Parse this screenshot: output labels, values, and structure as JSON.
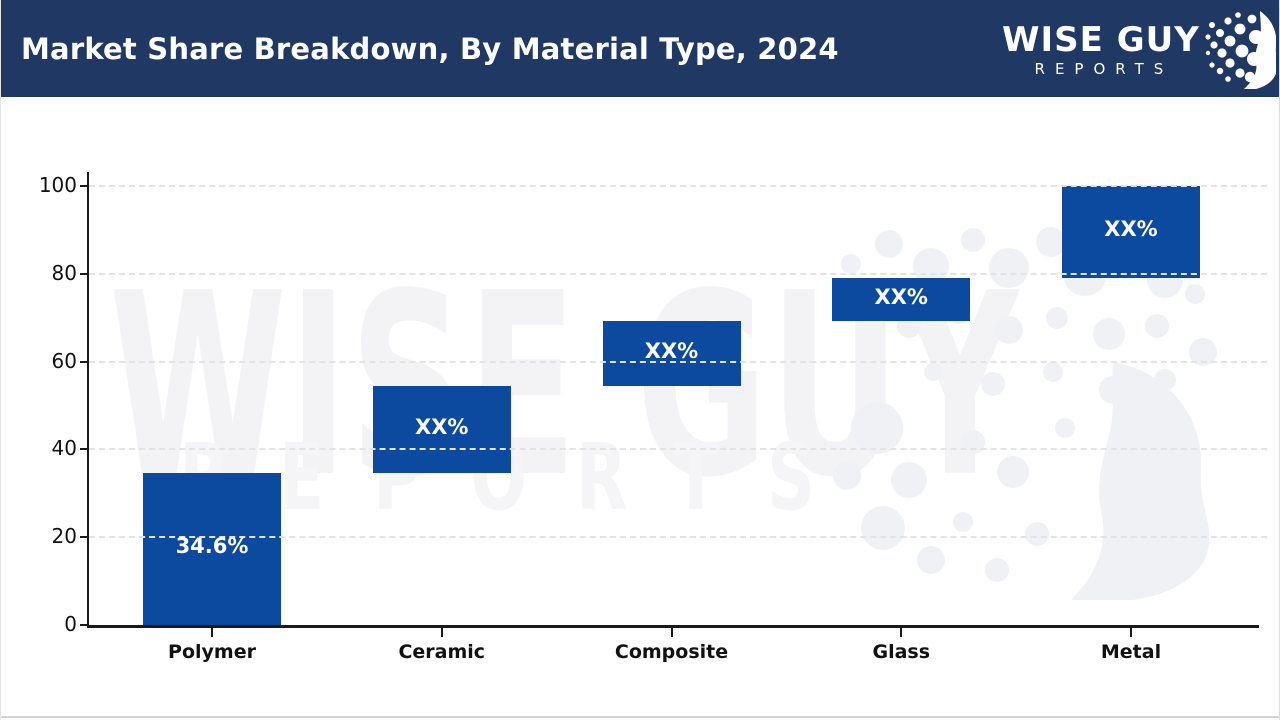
{
  "header": {
    "title": "Market Share Breakdown, By Material Type, 2024",
    "bg_color": "#203864",
    "logo": {
      "line1": "WISE GUY",
      "line2": "REPORTS"
    }
  },
  "watermark": {
    "line1": "WISE GUY",
    "line2": "REPORTS"
  },
  "chart_data": {
    "type": "bar",
    "subtype": "waterfall",
    "title": "Market Share Breakdown, By Material Type, 2024",
    "categories": [
      "Polymer",
      "Ceramic",
      "Composite",
      "Glass",
      "Metal"
    ],
    "segments": [
      {
        "category": "Polymer",
        "start": 0,
        "end": 34.6,
        "label": "34.6%"
      },
      {
        "category": "Ceramic",
        "start": 34.6,
        "end": 54.4,
        "label": "XX%"
      },
      {
        "category": "Composite",
        "start": 54.4,
        "end": 69.2,
        "label": "XX%"
      },
      {
        "category": "Glass",
        "start": 69.2,
        "end": 79.0,
        "label": "XX%"
      },
      {
        "category": "Metal",
        "start": 79.0,
        "end": 100,
        "label": "XX%"
      }
    ],
    "xlabel": "",
    "ylabel": "",
    "ylim": [
      0,
      100
    ],
    "yticks": [
      0,
      20,
      40,
      60,
      80,
      100
    ],
    "grid": "horizontal-dashed",
    "legend": "none",
    "bar_color": "#0b4a9f",
    "bar_label_color": "#ffffff",
    "axis_color": "#1a1a1a",
    "grid_color": "#e3e3e3"
  }
}
